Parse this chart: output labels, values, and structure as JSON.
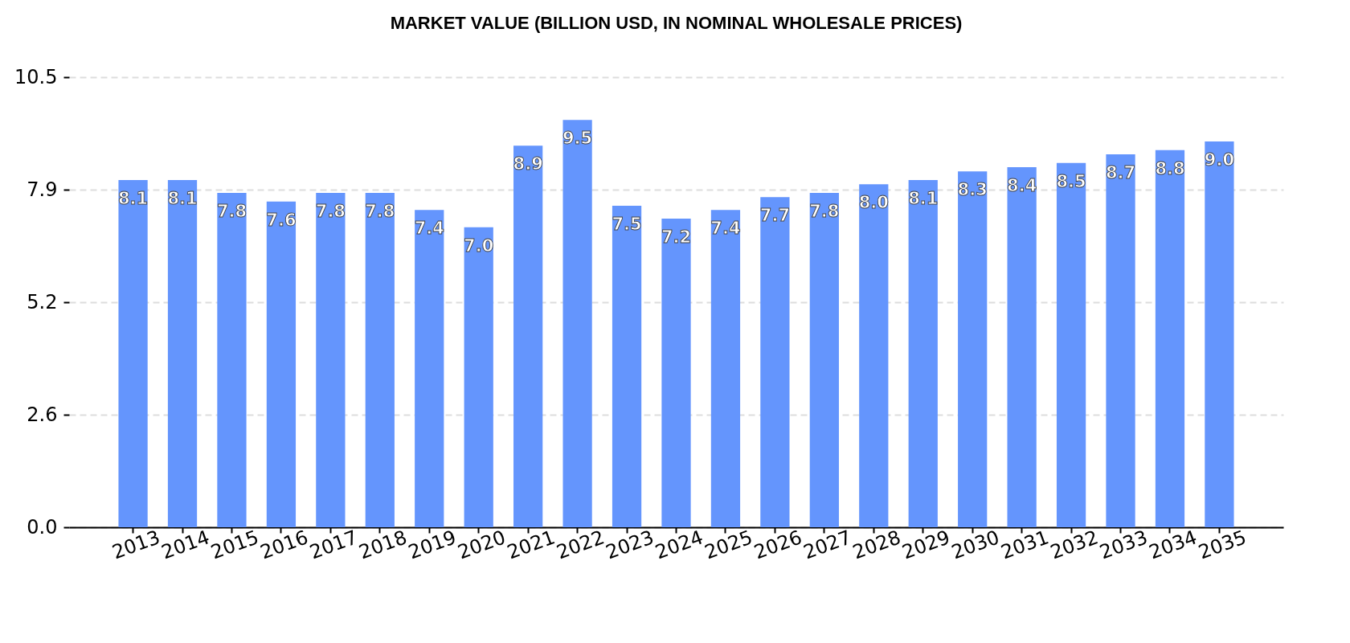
{
  "chart_data": {
    "type": "bar",
    "title": "MARKET VALUE (BILLION USD, IN NOMINAL WHOLESALE PRICES)",
    "categories": [
      "2013",
      "2014",
      "2015",
      "2016",
      "2017",
      "2018",
      "2019",
      "2020",
      "2021",
      "2022",
      "2023",
      "2024",
      "2025",
      "2026",
      "2027",
      "2028",
      "2029",
      "2030",
      "2031",
      "2032",
      "2033",
      "2034",
      "2035"
    ],
    "values": [
      8.1,
      8.1,
      7.8,
      7.6,
      7.8,
      7.8,
      7.4,
      7.0,
      8.9,
      9.5,
      7.5,
      7.2,
      7.4,
      7.7,
      7.8,
      8.0,
      8.1,
      8.3,
      8.4,
      8.5,
      8.7,
      8.8,
      9.0
    ],
    "value_labels": [
      "8.1",
      "8.1",
      "7.8",
      "7.6",
      "7.8",
      "7.8",
      "7.4",
      "7.0",
      "8.9",
      "9.5",
      "7.5",
      "7.2",
      "7.4",
      "7.7",
      "7.8",
      "8.0",
      "8.1",
      "8.3",
      "8.4",
      "8.5",
      "8.7",
      "8.8",
      "9.0"
    ],
    "color": "#6495fd",
    "ylim": [
      0,
      10.5
    ],
    "yticks": [
      {
        "value": 0,
        "label": "0.0"
      },
      {
        "value": 2.625,
        "label": "2.6"
      },
      {
        "value": 5.25,
        "label": "5.2"
      },
      {
        "value": 7.875,
        "label": "7.9"
      },
      10.5
    ],
    "grid": "y"
  }
}
